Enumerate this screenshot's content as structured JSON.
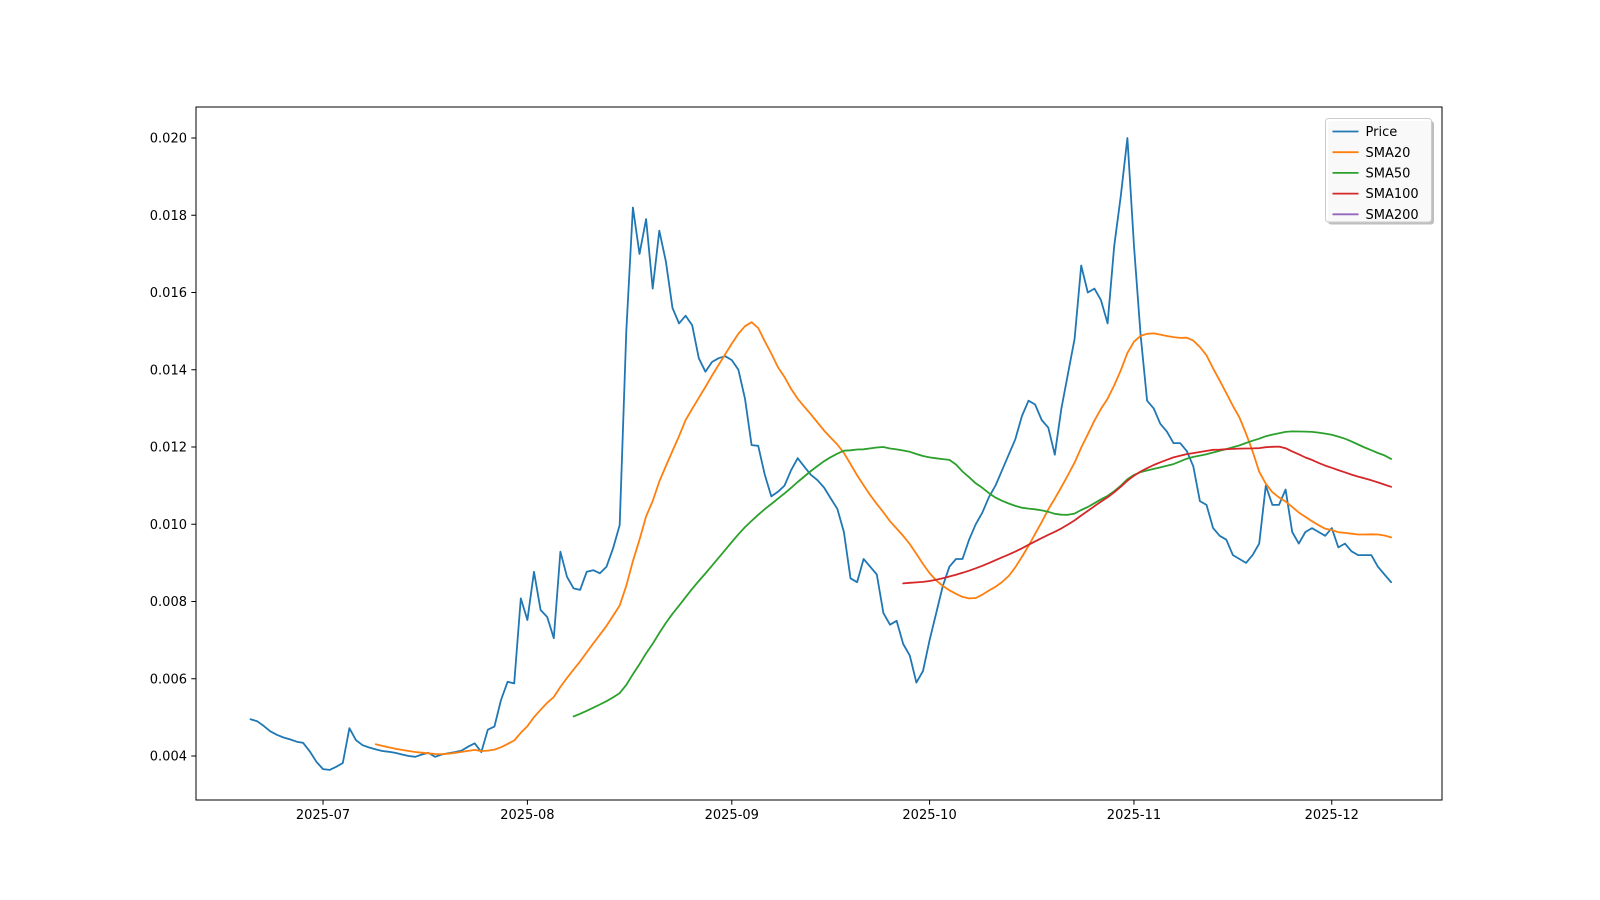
{
  "chart_data": {
    "type": "line",
    "title": "",
    "xlabel": "",
    "ylabel": "",
    "grid": false,
    "background_color": "#ffffff",
    "axes_border_color": "#000000",
    "x_start": "2025-06-20",
    "frequency": "daily",
    "x_ticks": [
      "2025-07",
      "2025-08",
      "2025-09",
      "2025-10",
      "2025-11",
      "2025-12"
    ],
    "y_ticks": [
      "0.004",
      "0.006",
      "0.008",
      "0.010",
      "0.012",
      "0.014",
      "0.016",
      "0.018",
      "0.020"
    ],
    "ylim": [
      0.00291,
      0.0208
    ],
    "legend": {
      "position": "upper right",
      "entries": [
        {
          "label": "Price",
          "color": "#1f77b4"
        },
        {
          "label": "SMA20",
          "color": "#ff7f0e"
        },
        {
          "label": "SMA50",
          "color": "#2ca02c"
        },
        {
          "label": "SMA100",
          "color": "#d62728"
        },
        {
          "label": "SMA200",
          "color": "#9467bd"
        }
      ]
    },
    "series": [
      {
        "name": "Price",
        "color": "#1f77b4",
        "values": [
          0.00495,
          0.0049,
          0.00478,
          0.00464,
          0.00455,
          0.00448,
          0.00443,
          0.00437,
          0.00434,
          0.00412,
          0.00385,
          0.00366,
          0.00364,
          0.00372,
          0.00382,
          0.00472,
          0.00441,
          0.00428,
          0.00422,
          0.00417,
          0.00413,
          0.00411,
          0.00408,
          0.00404,
          0.004,
          0.00398,
          0.00404,
          0.00408,
          0.00398,
          0.00404,
          0.00407,
          0.0041,
          0.00414,
          0.00424,
          0.00433,
          0.0041,
          0.00468,
          0.00476,
          0.00545,
          0.00592,
          0.00588,
          0.00808,
          0.00752,
          0.00877,
          0.00778,
          0.0076,
          0.00705,
          0.00929,
          0.00864,
          0.00834,
          0.0083,
          0.00877,
          0.00881,
          0.00873,
          0.0089,
          0.00938,
          0.00998,
          0.015,
          0.0182,
          0.017,
          0.0179,
          0.0161,
          0.0176,
          0.0168,
          0.0156,
          0.0152,
          0.0154,
          0.01515,
          0.0143,
          0.01395,
          0.0142,
          0.0143,
          0.01435,
          0.01425,
          0.014,
          0.01325,
          0.01205,
          0.01203,
          0.01128,
          0.01072,
          0.01084,
          0.011,
          0.0114,
          0.01171,
          0.01149,
          0.01128,
          0.01114,
          0.01095,
          0.01067,
          0.0104,
          0.0098,
          0.0086,
          0.0085,
          0.0091,
          0.0089,
          0.0087,
          0.0077,
          0.0074,
          0.0075,
          0.0069,
          0.0066,
          0.0059,
          0.0062,
          0.007,
          0.0077,
          0.0084,
          0.0089,
          0.0091,
          0.0091,
          0.0096,
          0.01,
          0.0103,
          0.0107,
          0.011,
          0.0114,
          0.0118,
          0.0122,
          0.0128,
          0.0132,
          0.0131,
          0.0127,
          0.0125,
          0.0118,
          0.013,
          0.0139,
          0.0148,
          0.0167,
          0.016,
          0.0161,
          0.0158,
          0.0152,
          0.0172,
          0.0185,
          0.02,
          0.0172,
          0.0149,
          0.0132,
          0.013,
          0.0126,
          0.0124,
          0.0121,
          0.0121,
          0.0119,
          0.0115,
          0.0106,
          0.0105,
          0.0099,
          0.0097,
          0.0096,
          0.0092,
          0.0091,
          0.009,
          0.0092,
          0.0095,
          0.011,
          0.0105,
          0.0105,
          0.0109,
          0.0098,
          0.0095,
          0.0098,
          0.0099,
          0.0098,
          0.0097,
          0.0099,
          0.0094,
          0.0095,
          0.0093,
          0.0092,
          0.0092,
          0.0092,
          0.0089,
          0.0087,
          0.0085
        ]
      },
      {
        "name": "SMA20",
        "color": "#ff7f0e",
        "derived_from": "Price",
        "window": 20
      },
      {
        "name": "SMA50",
        "color": "#2ca02c",
        "derived_from": "Price",
        "window": 50
      },
      {
        "name": "SMA100",
        "color": "#d62728",
        "derived_from": "Price",
        "window": 100
      },
      {
        "name": "SMA200",
        "color": "#9467bd",
        "derived_from": "Price",
        "window": 200
      }
    ]
  }
}
